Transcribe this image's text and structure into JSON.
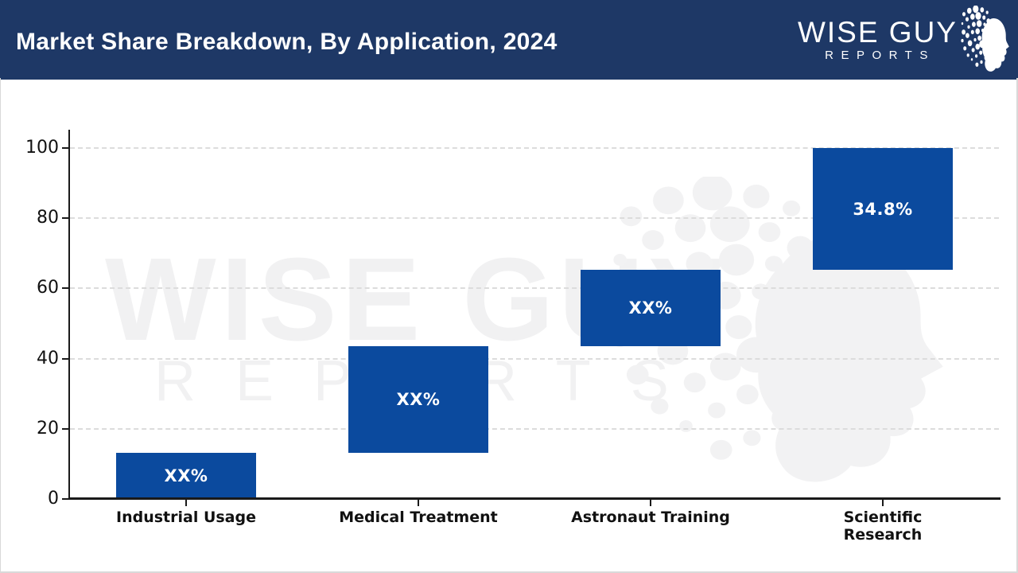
{
  "header": {
    "title": "Market Share Breakdown, By Application, 2024",
    "logo": {
      "wordmark": "WISE GUY",
      "sub": "REPORTS"
    }
  },
  "watermark": {
    "wordmark": "WISE GUY",
    "sub": "REPORTS"
  },
  "chart_data": {
    "type": "bar",
    "subtype": "waterfall",
    "title": "Market Share Breakdown, By Application, 2024",
    "categories": [
      "Industrial Usage",
      "Medical Treatment",
      "Astronaut Training",
      "Scientific\nResearch"
    ],
    "series": [
      {
        "name": "Market share (%)",
        "segments": [
          {
            "category": "Industrial Usage",
            "start": 0,
            "end": 13.2,
            "label": "XX%"
          },
          {
            "category": "Medical Treatment",
            "start": 13.2,
            "end": 43.5,
            "label": "XX%"
          },
          {
            "category": "Astronaut Training",
            "start": 43.5,
            "end": 65.2,
            "label": "XX%"
          },
          {
            "category": "Scientific Research",
            "start": 65.2,
            "end": 100,
            "label": "34.8%"
          }
        ]
      }
    ],
    "xlabel": "",
    "ylabel": "",
    "ylim": [
      0,
      105
    ],
    "yticks": [
      0,
      20,
      40,
      60,
      80,
      100
    ],
    "grid": "horizontal-dashed",
    "legend": "none",
    "colors": {
      "bar": "#0b4a9e",
      "grid": "#dcdcdc",
      "axis": "#1a1a1a",
      "bar_label_text": "#ffffff",
      "header_bg": "#1e3866",
      "watermark": "#f1f1f2"
    }
  }
}
